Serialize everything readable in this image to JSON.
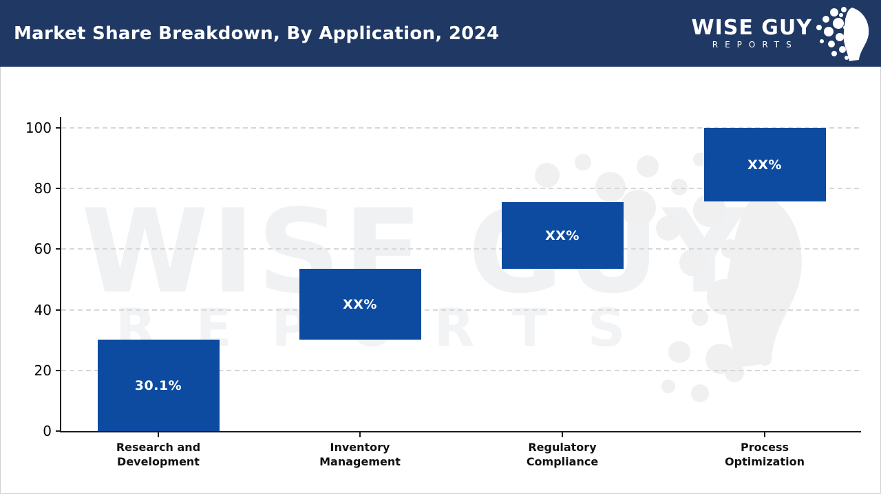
{
  "header": {
    "title": "Market Share Breakdown, By Application, 2024",
    "logo": {
      "line1": "WISE GUY",
      "line2": "REPORTS"
    }
  },
  "watermark": {
    "line1": "WISE GUY",
    "line2": "REPORTS"
  },
  "chart_data": {
    "type": "bar",
    "subtype": "waterfall",
    "title": "Market Share Breakdown, By Application, 2024",
    "categories": [
      "Research and\nDevelopment",
      "Inventory\nManagement",
      "Regulatory\nCompliance",
      "Process\nOptimization"
    ],
    "series": [
      {
        "name": "Market Share %",
        "ranges": [
          [
            0,
            30.1
          ],
          [
            30.1,
            53.5
          ],
          [
            53.5,
            75.5
          ],
          [
            75.7,
            100
          ]
        ]
      }
    ],
    "bar_labels": [
      "30.1%",
      "XX%",
      "XX%",
      "XX%"
    ],
    "yticks": [
      0,
      20,
      40,
      60,
      80,
      100
    ],
    "ylim": [
      0,
      104
    ],
    "grid": "dashed-horizontal",
    "legend": "none",
    "colors": {
      "bar": "#0c4ba0",
      "bar_label": "#ffffff",
      "header_bg": "#1f3864",
      "gridline": "#d7d7d7",
      "axis": "#1a1a1a",
      "watermark": "#f0f1f3"
    }
  }
}
